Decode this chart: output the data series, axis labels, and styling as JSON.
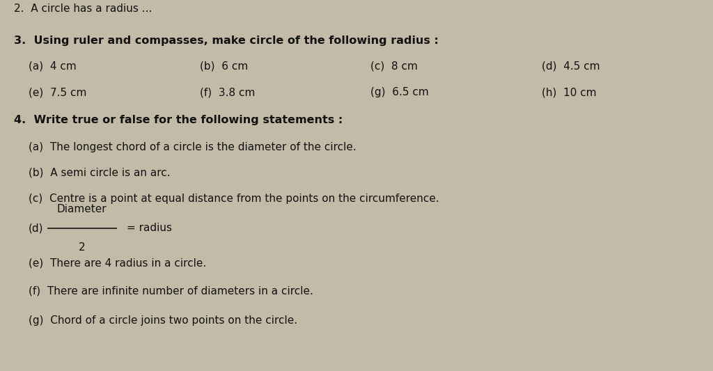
{
  "background_color": "#c4baa8",
  "top_partial_text": "2.  A circle has a radius ...",
  "q3_heading": "3.  Using ruler and compasses, make circle of the following radius :",
  "q3_row1": [
    "(a)  4 cm",
    "(b)  6 cm",
    "(c)  8 cm",
    "(d)  4.5 cm"
  ],
  "q3_row2": [
    "(e)  7.5 cm",
    "(f)  3.8 cm",
    "(g)  6.5 cm",
    "(h)  10 cm"
  ],
  "q4_heading": "4.  Write true or false for the following statements :",
  "q4_a": "(a)  The longest chord of a circle is the diameter of the circle.",
  "q4_b": "(b)  A semi circle is an arc.",
  "q4_c": "(c)  Centre is a point at equal distance from the points on the circumference.",
  "q4_d_label": "(d)",
  "q4_d_numerator": "Diameter",
  "q4_d_denominator": "2",
  "q4_d_equals": "= radius",
  "q4_e": "(e)  There are 4 radius in a circle.",
  "q4_f": "(f)  There are infinite number of diameters in a circle.",
  "q4_g": "(g)  Chord of a circle joins two points on the circle.",
  "heading_fontsize": 11.5,
  "body_fontsize": 11,
  "text_color": "#111111"
}
